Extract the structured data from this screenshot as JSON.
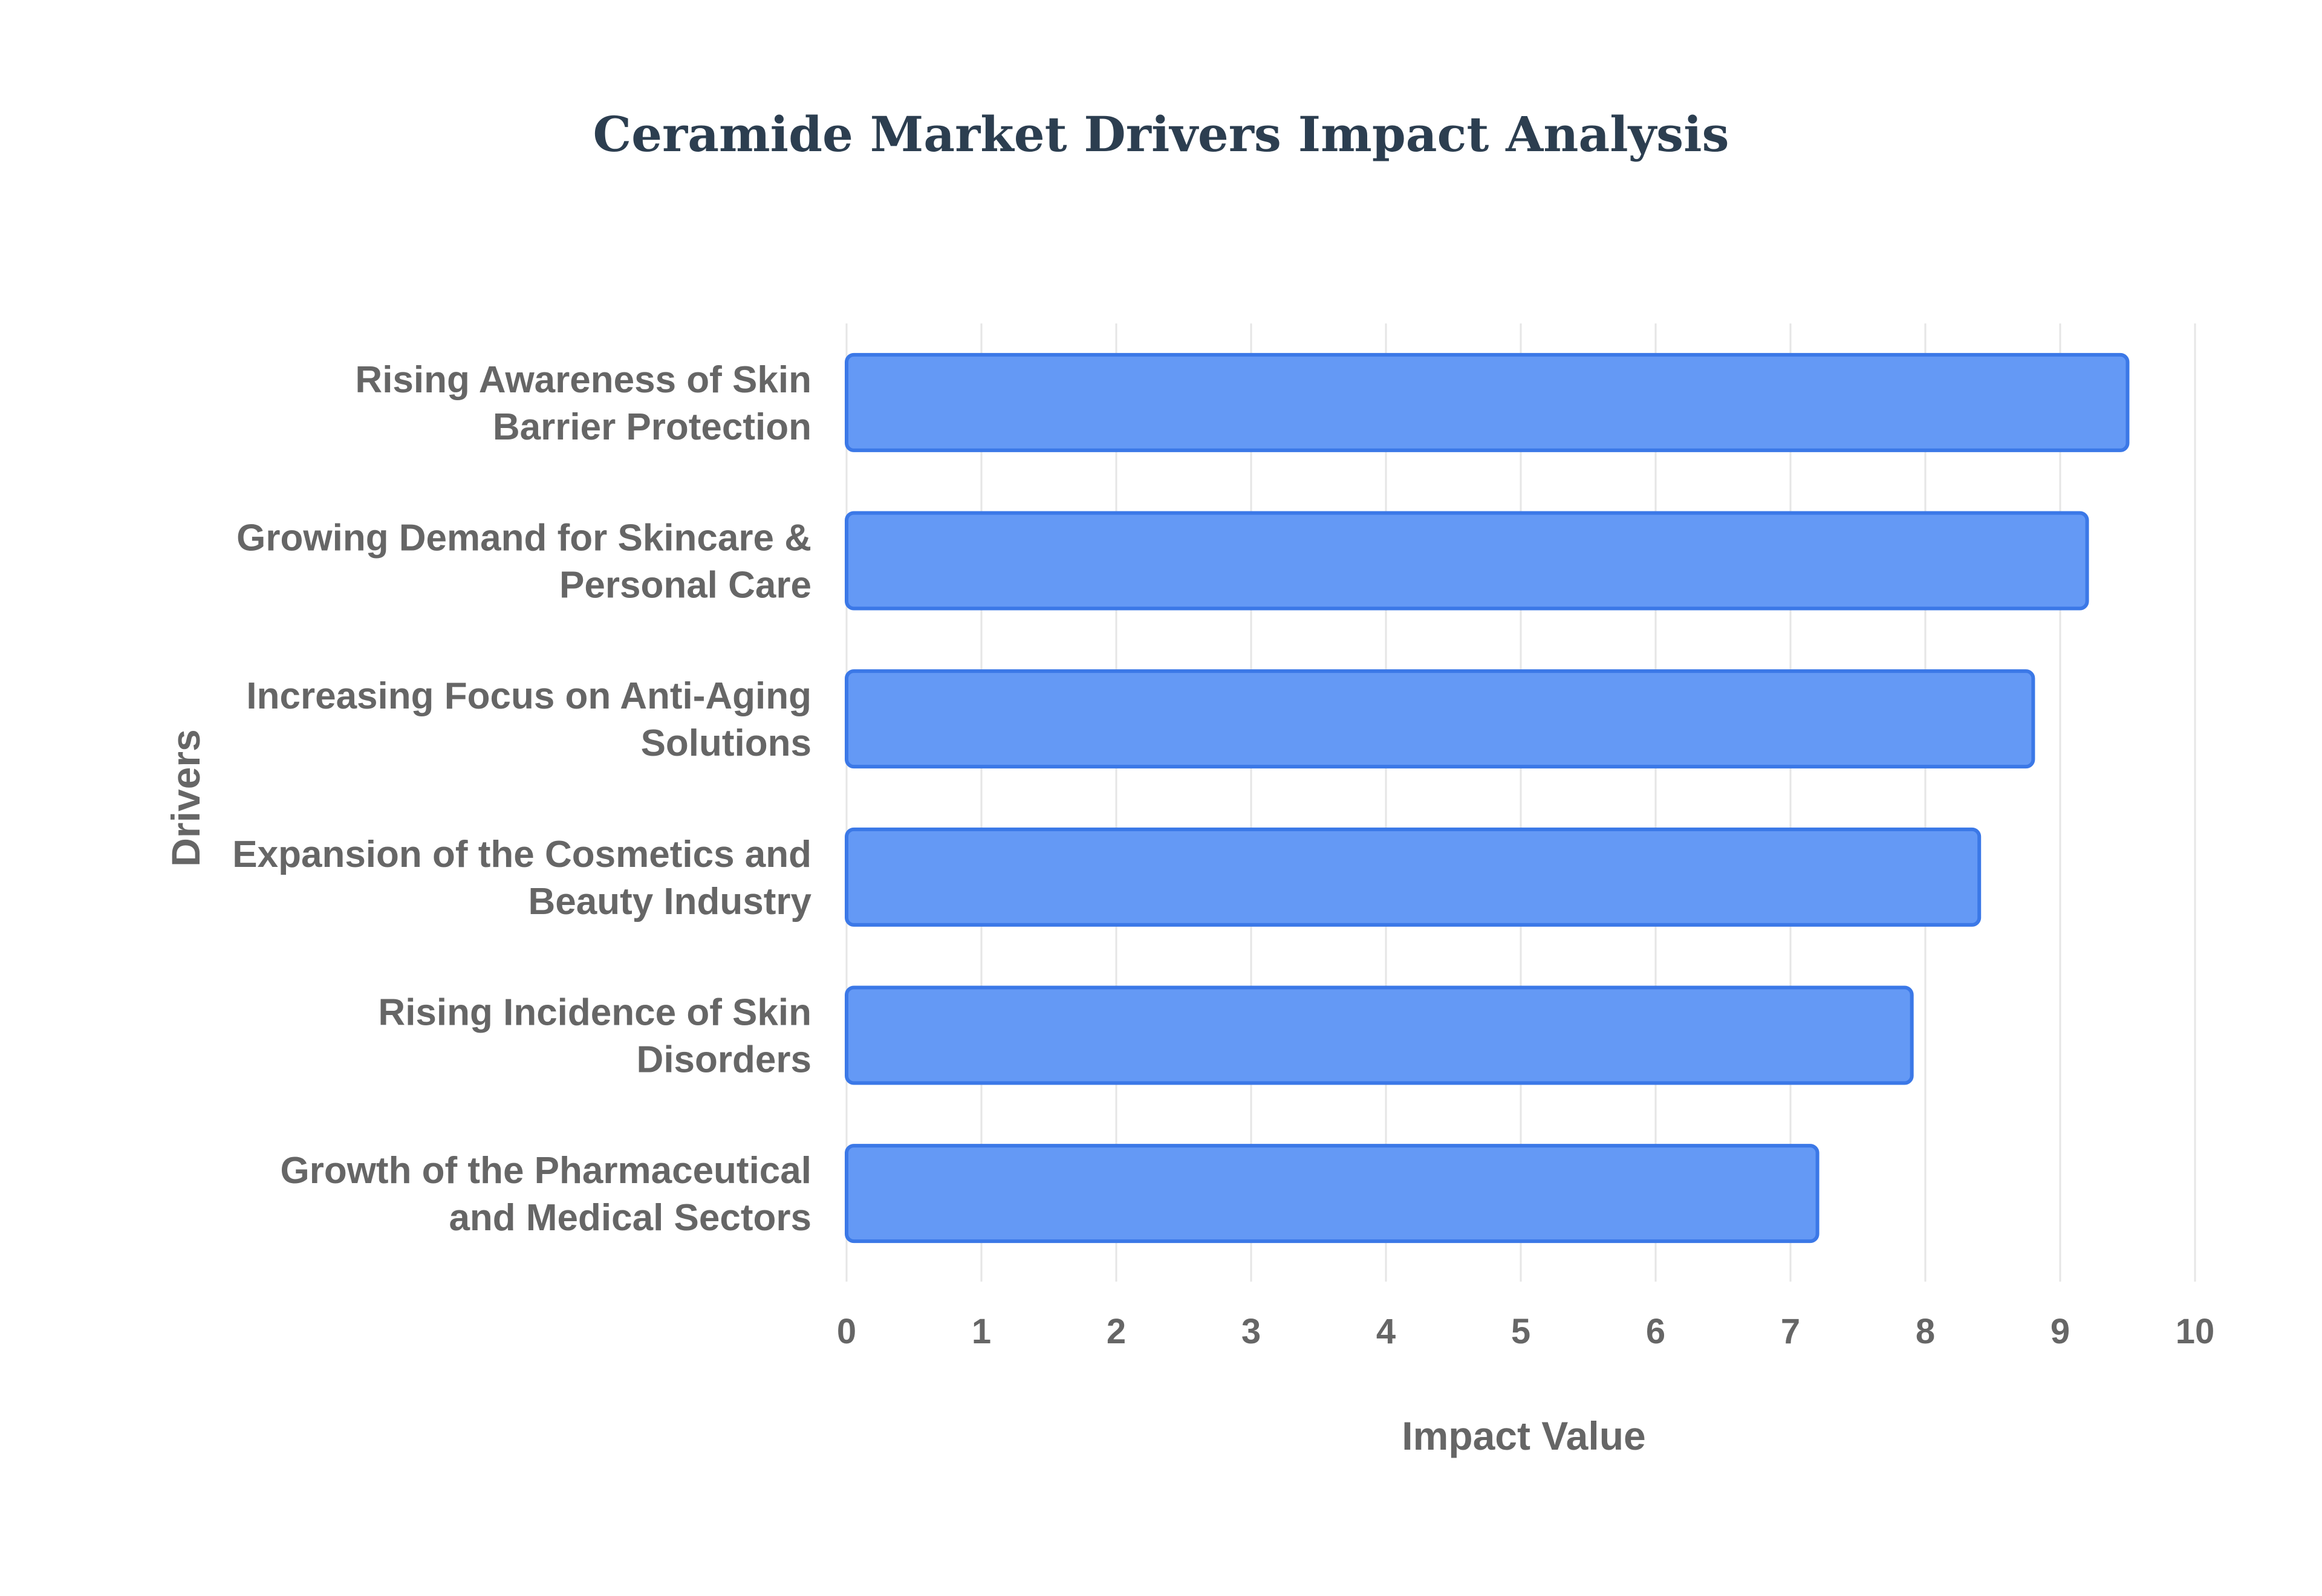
{
  "chart_data": {
    "type": "bar",
    "orientation": "horizontal",
    "title": "Ceramide Market Drivers Impact Analysis",
    "xlabel": "Impact Value",
    "ylabel": "Drivers",
    "xlim": [
      0,
      10
    ],
    "x_ticks": [
      "0",
      "1",
      "2",
      "3",
      "4",
      "5",
      "6",
      "7",
      "8",
      "9",
      "10"
    ],
    "grid": true,
    "legend": "none",
    "bar_fill_color": "#6499f5",
    "bar_border_color": "#3b78e7",
    "categories": [
      [
        "Rising Awareness of Skin",
        "Barrier Protection"
      ],
      [
        "Growing Demand for Skincare &",
        "Personal Care"
      ],
      [
        "Increasing Focus on Anti-Aging",
        "Solutions"
      ],
      [
        "Expansion of the Cosmetics and",
        "Beauty Industry"
      ],
      [
        "Rising Incidence of Skin",
        "Disorders"
      ],
      [
        "Growth of the Pharmaceutical",
        "and Medical Sectors"
      ]
    ],
    "values": [
      9.5,
      9.2,
      8.8,
      8.4,
      7.9,
      7.2
    ]
  }
}
